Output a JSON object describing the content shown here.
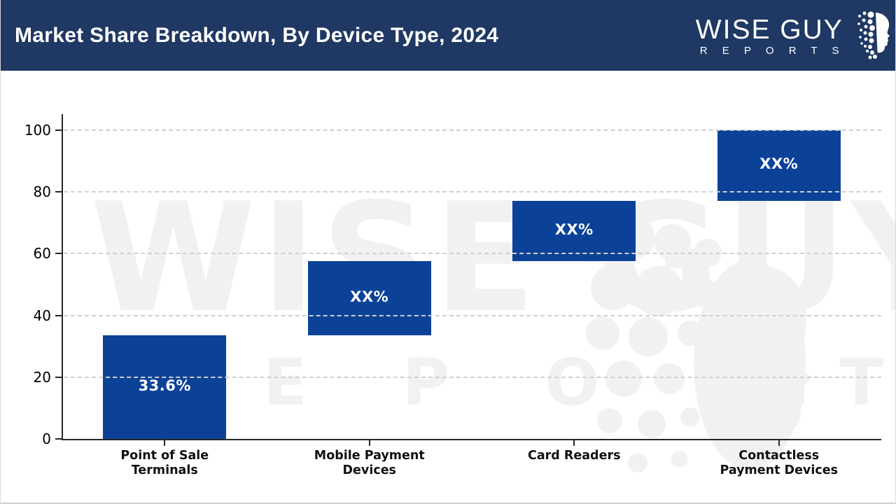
{
  "header": {
    "title": "Market Share Breakdown, By Device Type, 2024",
    "background_color": "#1f3864",
    "logo": {
      "wordmark": "WISE GUY",
      "subtext": "R E P O R T S"
    }
  },
  "watermark": {
    "line1": "WISE GUY",
    "line2": "R E P O R T S"
  },
  "chart_data": {
    "type": "waterfall",
    "title": "Market Share Breakdown, By Device Type, 2024",
    "categories": [
      "Point of Sale\nTerminals",
      "Mobile Payment\nDevices",
      "Card Readers",
      "Contactless\nPayment Devices"
    ],
    "bars": [
      {
        "category": "Point of Sale Terminals",
        "start": 0,
        "end": 33.6,
        "label": "33.6%"
      },
      {
        "category": "Mobile Payment Devices",
        "start": 33.6,
        "end": 57.6,
        "label": "XX%"
      },
      {
        "category": "Card Readers",
        "start": 57.6,
        "end": 77.1,
        "label": "XX%"
      },
      {
        "category": "Contactless Payment Devices",
        "start": 77.1,
        "end": 100,
        "label": "XX%"
      }
    ],
    "ylabel": "",
    "xlabel": "",
    "ylim": [
      0,
      100
    ],
    "yticks": [
      0,
      20,
      40,
      60,
      80,
      100
    ],
    "grid": "dashed-horizontal",
    "legend": "none",
    "bar_color": "#0b4298",
    "bar_label_color": "#ffffff",
    "grid_color": "#cfcfcf",
    "axis_color": "#262626",
    "tick_label_color": "#000000"
  }
}
